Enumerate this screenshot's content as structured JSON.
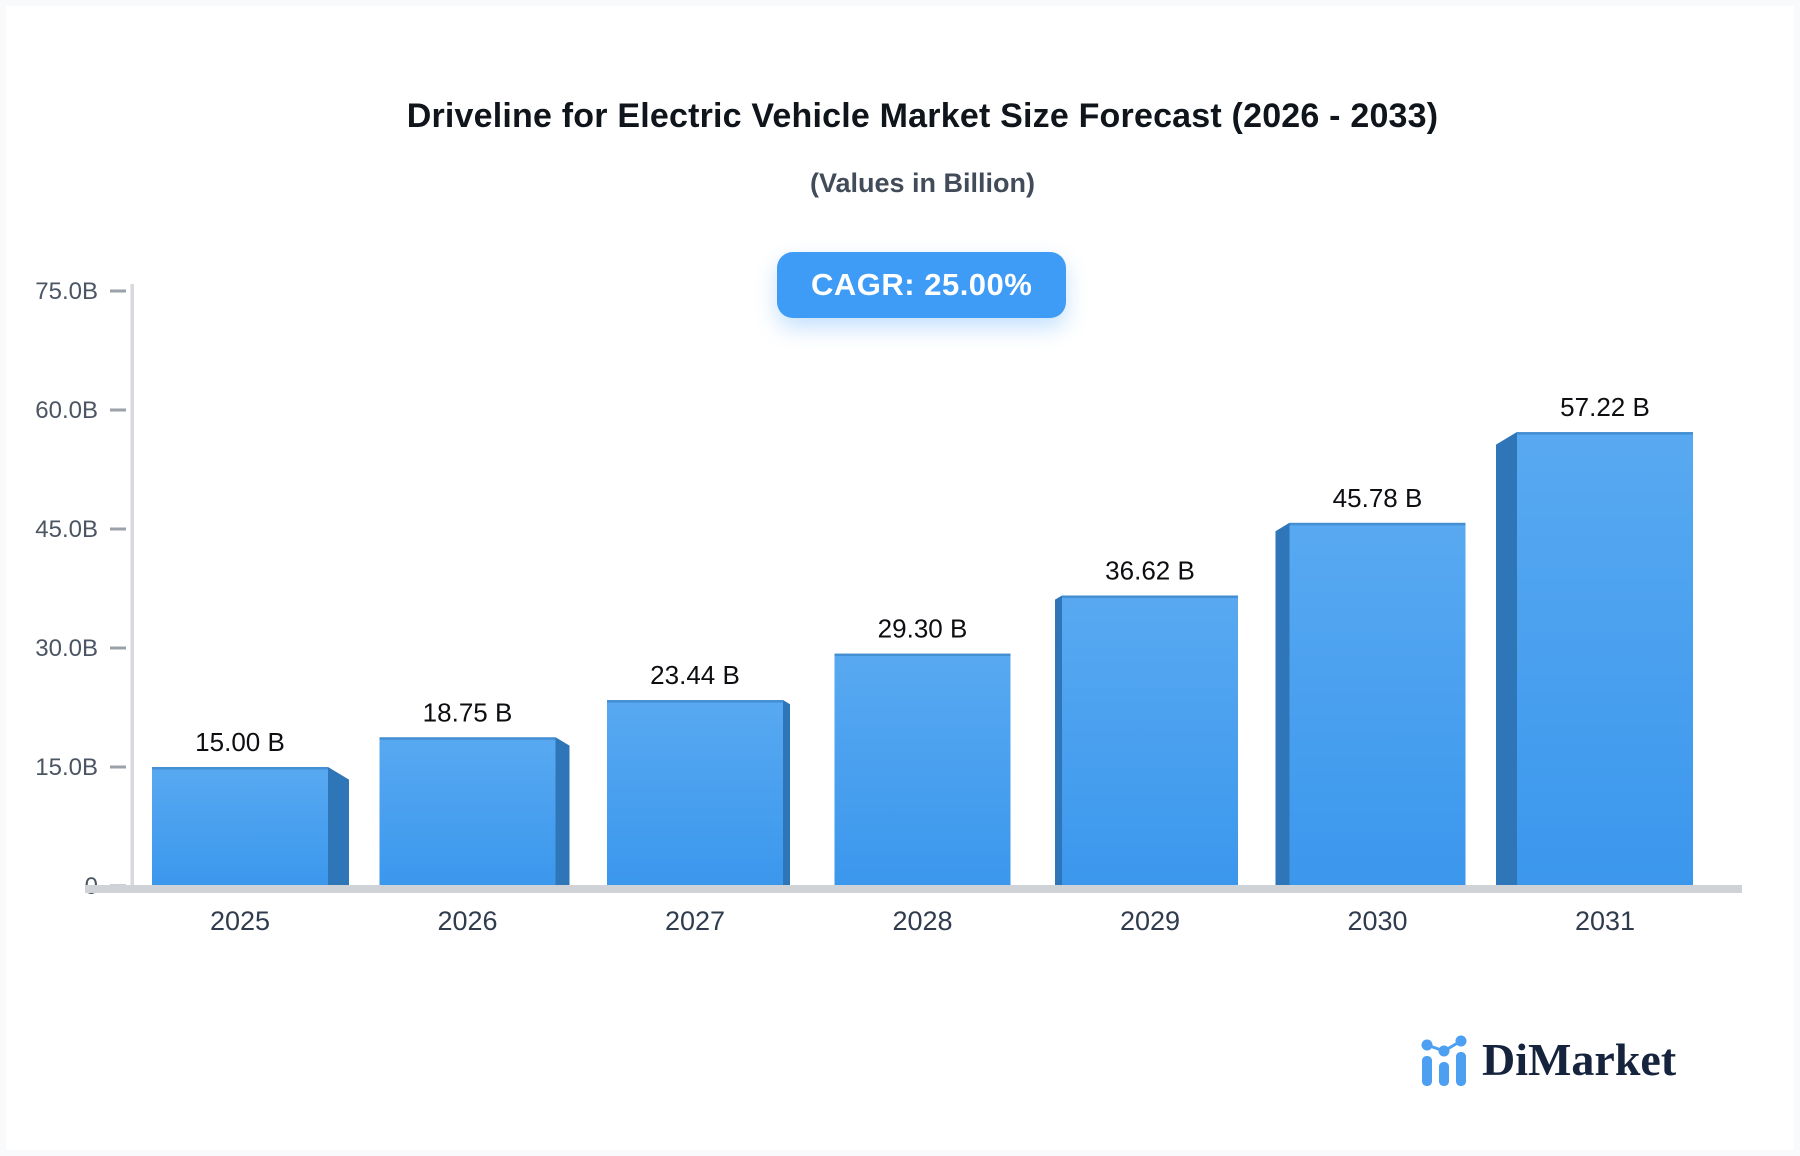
{
  "title": "Driveline for Electric Vehicle Market Size Forecast (2026 - 2033)",
  "subtitle": "(Values in Billion)",
  "cagr_badge": "CAGR: 25.00%",
  "watermark": {
    "brand": "DiMarket",
    "icon": "bar-chart-trend-icon"
  },
  "colors": {
    "badge_blue": "#3e9cf6",
    "bar_face_top": "#58a9f1",
    "bar_face_bottom": "#3b97ed",
    "bar_side": "#2e76b7",
    "bar_top_edge": "rgba(23,80,140,0.30)",
    "axis_line": "#d6d9dd",
    "baseline": "#cfd3d7",
    "tick_dash": "#9aa1aa",
    "tick_text": "#4b5563",
    "category_text": "#303c4e",
    "value_text": "#0c0e11",
    "logo_blue": "#4c9ff1",
    "logo_navy": "#16233d"
  },
  "chart_data": {
    "type": "bar",
    "title": "Driveline for Electric Vehicle Market Size Forecast (2026 - 2033)",
    "subtitle": "(Values in Billion)",
    "annotation": "CAGR: 25.00%",
    "categories": [
      "2025",
      "2026",
      "2027",
      "2028",
      "2029",
      "2030",
      "2031"
    ],
    "values": [
      15.0,
      18.75,
      23.44,
      29.3,
      36.62,
      45.78,
      57.22
    ],
    "value_labels": [
      "15.00 B",
      "18.75 B",
      "23.44 B",
      "29.30 B",
      "36.62 B",
      "45.78 B",
      "57.22 B"
    ],
    "unit": "Billion",
    "xlabel": "",
    "ylabel": "",
    "ylim": [
      0,
      75
    ],
    "y_ticks": [
      {
        "value": 0,
        "label": "0"
      },
      {
        "value": 15,
        "label": "15.0B"
      },
      {
        "value": 30,
        "label": "30.0B"
      },
      {
        "value": 45,
        "label": "45.0B"
      },
      {
        "value": 60,
        "label": "60.0B"
      },
      {
        "value": 75,
        "label": "75.0B"
      }
    ],
    "grid": false,
    "legend": "none",
    "style": "3d-perspective-blue-gradient"
  }
}
